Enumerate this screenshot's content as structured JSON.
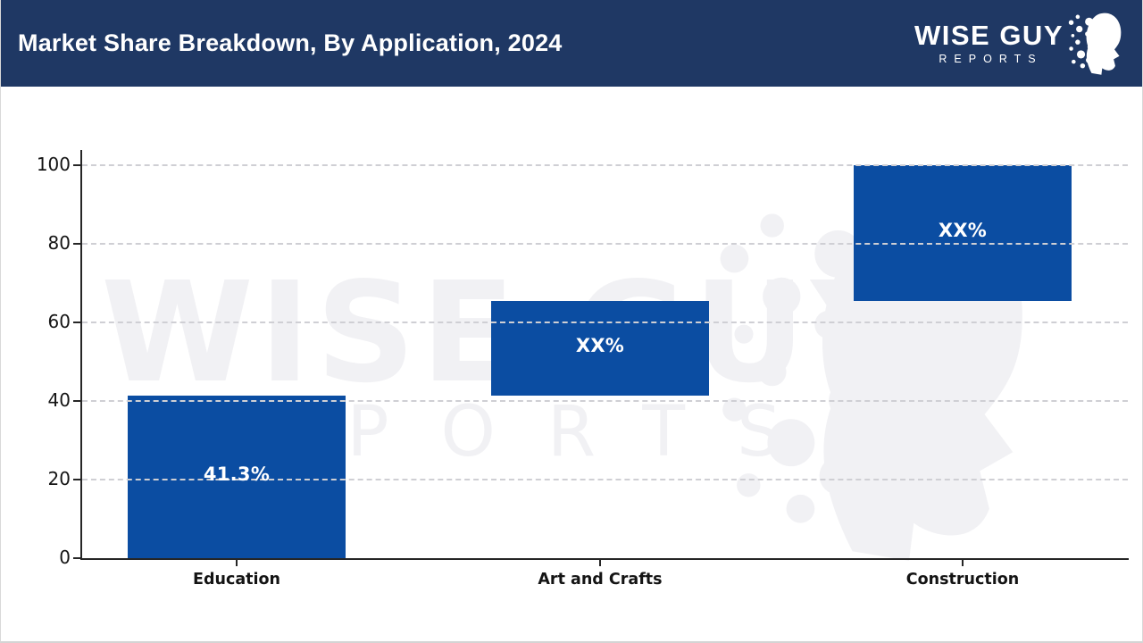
{
  "header": {
    "title": "Market Share Breakdown, By Application, 2024",
    "bg_color": "#1f3864",
    "logo": {
      "line1": "WISE GUY",
      "line2": "REPORTS"
    }
  },
  "watermark": {
    "line1": "WISE GUY",
    "line2": "REPORTS"
  },
  "chart_data": {
    "type": "bar",
    "subtype": "floating-waterfall",
    "title": "Market Share Breakdown, By Application, 2024",
    "categories": [
      "Education",
      "Art and Crafts",
      "Construction"
    ],
    "series": [
      {
        "name": "Market Share %",
        "segments": [
          {
            "category": "Education",
            "from": 0,
            "to": 41.3,
            "label": "41.3%"
          },
          {
            "category": "Art and Crafts",
            "from": 41.3,
            "to": 65.5,
            "label": "XX%"
          },
          {
            "category": "Construction",
            "from": 65.5,
            "to": 100,
            "label": "XX%"
          }
        ]
      }
    ],
    "xlabel": "",
    "ylabel": "",
    "ylim": [
      0,
      100
    ],
    "yticks": [
      0,
      20,
      40,
      60,
      80,
      100
    ],
    "grid": "horizontal-dashed",
    "legend": "none",
    "bar_color": "#0b4da2",
    "bar_label_color": "#ffffff",
    "axis_color": "#262626",
    "gridline_color": "#cfcfd4"
  }
}
